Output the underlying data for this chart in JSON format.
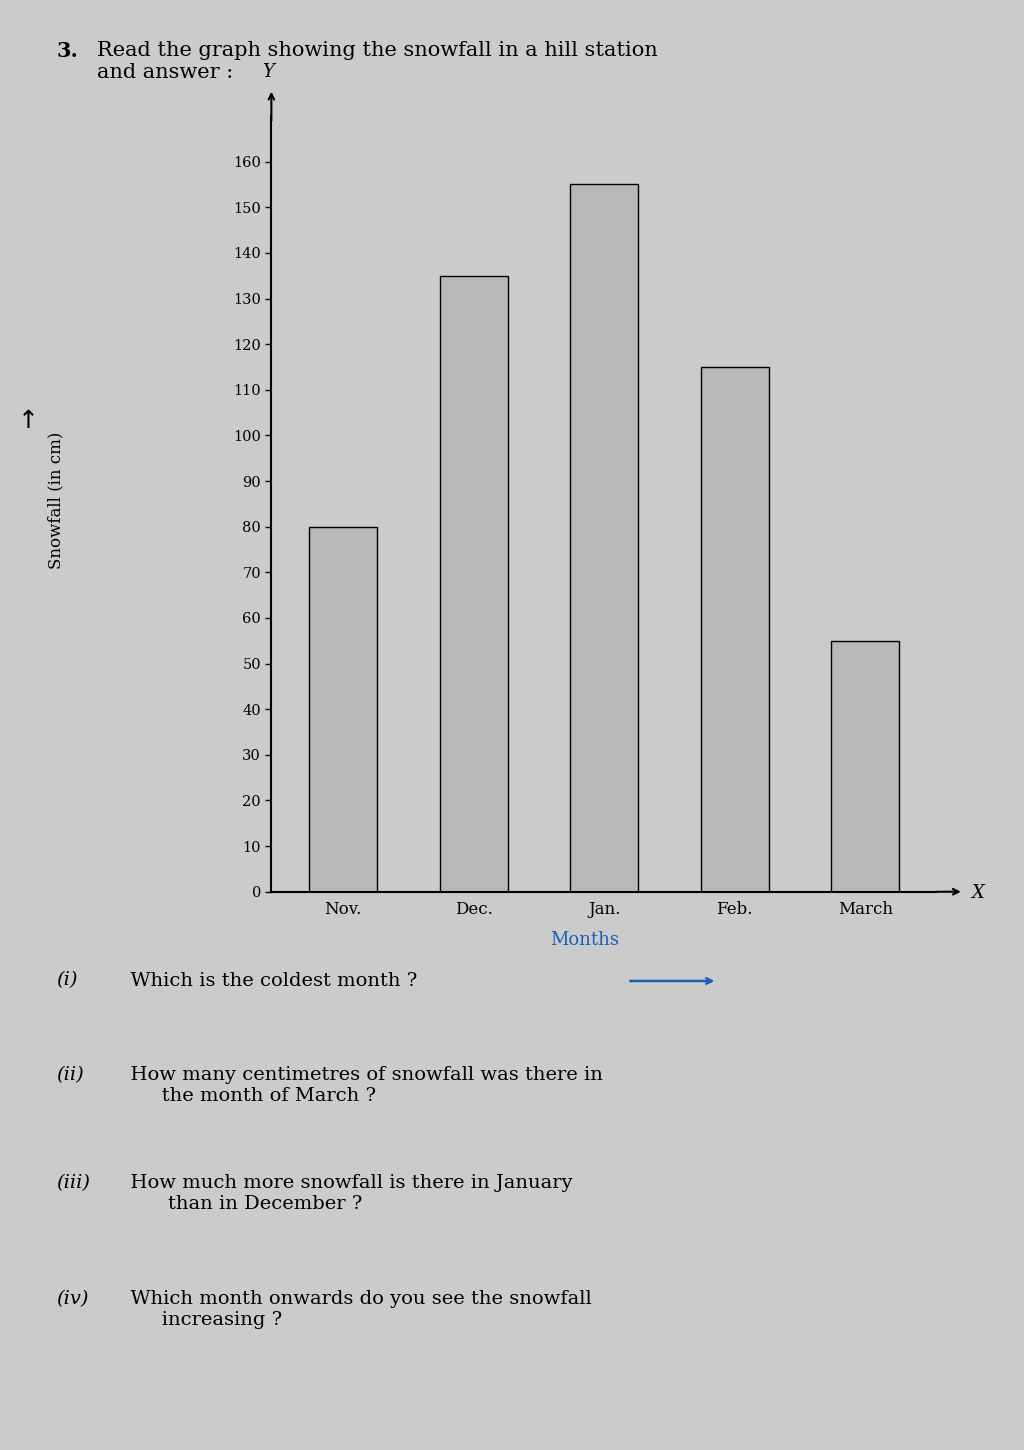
{
  "title_num": "3.",
  "title_text": "Read the graph showing the snowfall in a hill station\nand answer :",
  "months": [
    "Nov.",
    "Dec.",
    "Jan.",
    "Feb.",
    "March"
  ],
  "snowfall": [
    80,
    135,
    155,
    115,
    55
  ],
  "bar_color": "#b8b8b8",
  "bar_edgecolor": "#000000",
  "ylabel": "Snowfall (in cm)",
  "yticks": [
    0,
    10,
    20,
    30,
    40,
    50,
    60,
    70,
    80,
    90,
    100,
    110,
    120,
    130,
    140,
    150,
    160
  ],
  "ylim": [
    0,
    170
  ],
  "background_color": "#cbcbcb",
  "q1_italic": "(i)",
  "q1_text": "  Which is the coldest month ?",
  "q2_italic": "(ii)",
  "q2_text": "  How many centimetres of snowfall was there in\n      the month of March ?",
  "q3_italic": "(iii)",
  "q3_text": "  How much more snowfall is there in January\n       than in December ?",
  "q4_italic": "(iv)",
  "q4_text": "  Which month onwards do you see the snowfall\n      increasing ?"
}
